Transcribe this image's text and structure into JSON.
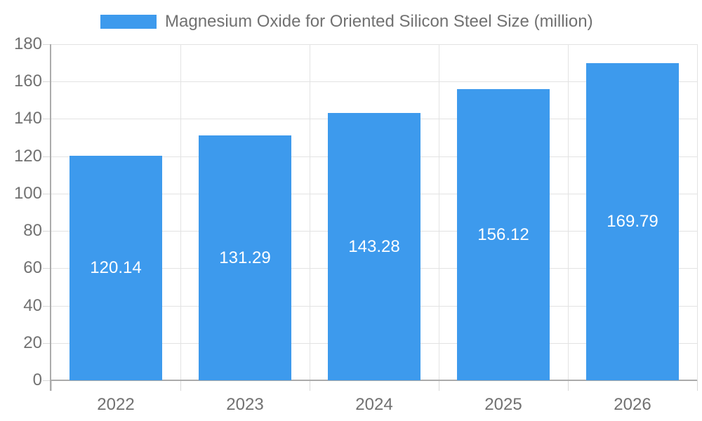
{
  "chart_data": {
    "type": "bar",
    "title": "Magnesium Oxide for Oriented Silicon Steel Size (million)",
    "categories": [
      "2022",
      "2023",
      "2024",
      "2025",
      "2026"
    ],
    "values": [
      120.14,
      131.29,
      143.28,
      156.12,
      169.79
    ],
    "value_labels": [
      "120.14",
      "131.29",
      "143.28",
      "156.12",
      "169.79"
    ],
    "xlabel": "",
    "ylabel": "",
    "ylim": [
      0,
      180
    ],
    "yticks": [
      0,
      20,
      40,
      60,
      80,
      100,
      120,
      140,
      160,
      180
    ],
    "grid": true,
    "legend_position": "top",
    "colors": {
      "bar": "#3D9AED",
      "grid_line": "#E3E3E3",
      "axis_line": "#ABABAB",
      "tick_line": "#D8D8D8",
      "axis_text": "#717171",
      "legend_text": "#717171",
      "value_text": "#FFFFFF",
      "background": "#FFFFFF"
    }
  }
}
